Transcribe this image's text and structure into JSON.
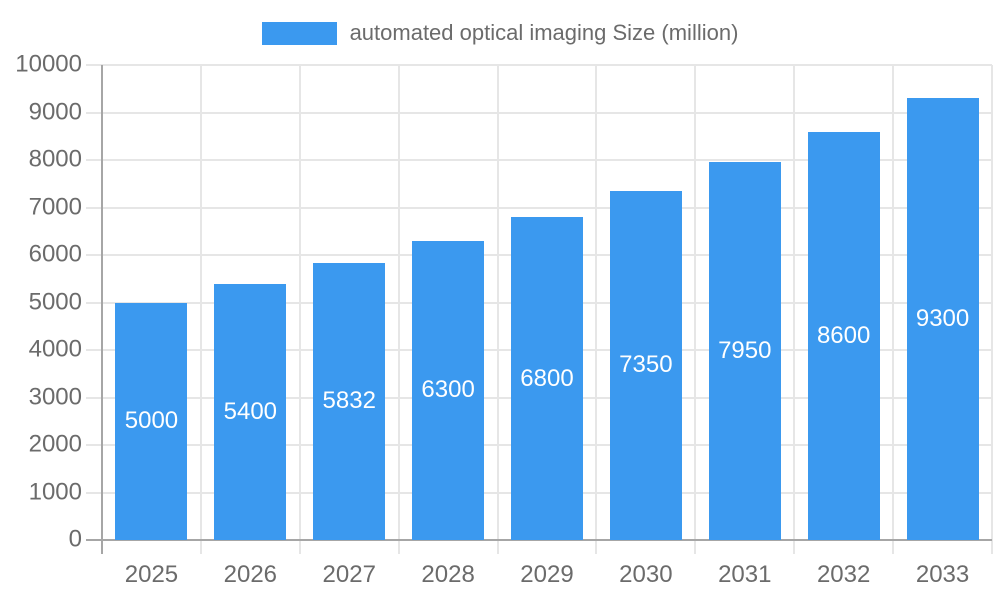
{
  "chart_data": {
    "type": "bar",
    "title": "",
    "legend": {
      "label": "automated optical imaging Size (million)",
      "position": "top"
    },
    "categories": [
      "2025",
      "2026",
      "2027",
      "2028",
      "2029",
      "2030",
      "2031",
      "2032",
      "2033"
    ],
    "series": [
      {
        "name": "automated optical imaging Size (million)",
        "values": [
          5000,
          5400,
          5832,
          6300,
          6800,
          7350,
          7950,
          8600,
          9300
        ]
      }
    ],
    "xlabel": "",
    "ylabel": "",
    "ylim": [
      0,
      10000
    ],
    "ytick_step": 1000,
    "yticks": [
      0,
      1000,
      2000,
      3000,
      4000,
      5000,
      6000,
      7000,
      8000,
      9000,
      10000
    ],
    "grid": true,
    "bar_value_labels_shown": true,
    "bar_value_label_position": "center-of-bar"
  },
  "colors": {
    "bar": "#3B99EF",
    "grid_line": "#E6E6E6",
    "axis_line": "#A6A6A6",
    "tick_text": "#6B6B6B",
    "legend_text": "#6B6B6B",
    "bar_label_text": "#FFFFFF",
    "background": "#FFFFFF"
  }
}
